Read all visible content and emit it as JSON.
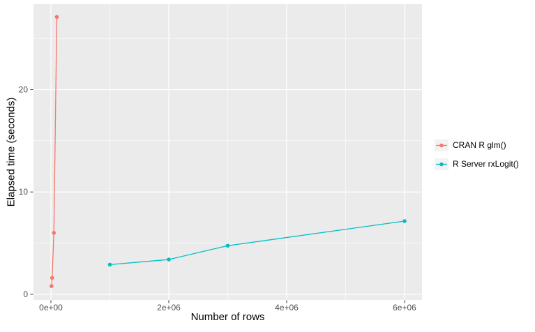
{
  "chart_data": {
    "type": "line",
    "title": "",
    "xlabel": "Number of rows",
    "ylabel": "Elapsed time (seconds)",
    "xlim": [
      -296000,
      6296000
    ],
    "ylim": [
      -0.55,
      28.35
    ],
    "x_ticks": {
      "values": [
        0,
        2000000,
        4000000,
        6000000
      ],
      "labels": [
        "0e+00",
        "2e+06",
        "4e+06",
        "6e+06"
      ]
    },
    "x_minor": [
      1000000,
      3000000,
      5000000
    ],
    "y_ticks": {
      "values": [
        0,
        10,
        20
      ],
      "labels": [
        "0",
        "10",
        "20"
      ]
    },
    "y_minor": [
      5,
      15,
      25
    ],
    "grid": true,
    "legend_position": "right",
    "series": [
      {
        "name": "CRAN R glm()",
        "color": "#F8766D",
        "x": [
          10000,
          20000,
          50000,
          100000
        ],
        "y": [
          0.8,
          1.6,
          6.0,
          27.1
        ]
      },
      {
        "name": "R Server rxLogit()",
        "color": "#00BFC4",
        "x": [
          1000000,
          2000000,
          3000000,
          6000000
        ],
        "y": [
          2.9,
          3.4,
          4.75,
          7.15
        ]
      }
    ],
    "colors": {
      "panel_bg": "#EBEBEB",
      "grid": "#FFFFFF",
      "axis_text": "#4D4D4D",
      "axis_title": "#000000",
      "tick_mark": "#333333",
      "legend_key_bg": "#F2F2F2",
      "figure_bg": "#FFFFFF"
    }
  }
}
